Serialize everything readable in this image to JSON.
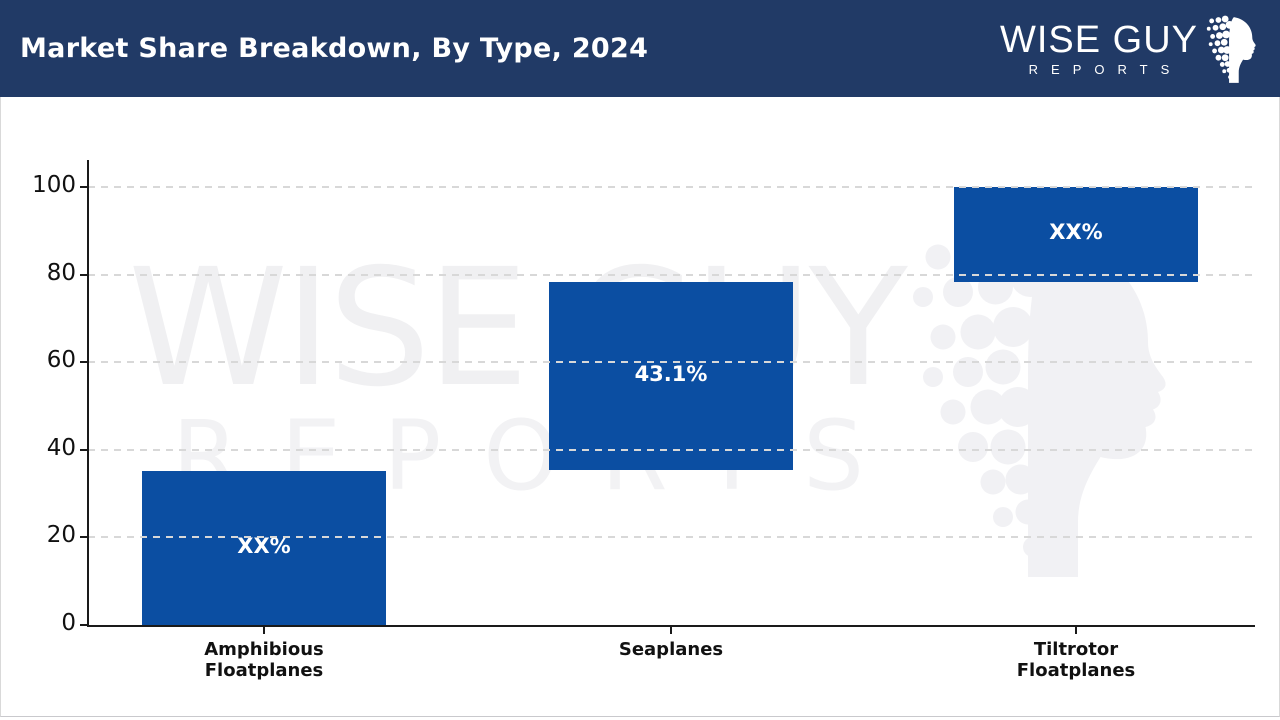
{
  "header": {
    "title": "Market Share Breakdown, By Type, 2024",
    "logo": {
      "name": "WISE GUY",
      "sub": "REPORTS"
    }
  },
  "watermark": {
    "name": "WISE GUY",
    "sub": "REPORTS"
  },
  "chart_data": {
    "type": "bar",
    "subtype": "waterfall",
    "title": "Market Share Breakdown, By Type, 2024",
    "categories": [
      "Amphibious\nFloatplanes",
      "Seaplanes",
      "Tiltrotor\nFloatplanes"
    ],
    "segments": [
      {
        "category": "Amphibious Floatplanes",
        "start": 0,
        "end": 35.2,
        "label": "XX%"
      },
      {
        "category": "Seaplanes",
        "start": 35.3,
        "end": 78.4,
        "label": "43.1%"
      },
      {
        "category": "Tiltrotor Floatplanes",
        "start": 78.4,
        "end": 100,
        "label": "XX%"
      }
    ],
    "ylim": [
      0,
      100
    ],
    "yticks": [
      0,
      20,
      40,
      60,
      80,
      100
    ],
    "xlabel": "",
    "ylabel": "",
    "grid": "horizontal-dashed",
    "legend": "none",
    "bar_color": "#0b4ea2",
    "bar_label_color": "#ffffff",
    "grid_color": "#d8d8d8",
    "axis_color": "#1a1a1a",
    "header_bg": "#213a66",
    "watermark_color": "#f0f0f2"
  }
}
